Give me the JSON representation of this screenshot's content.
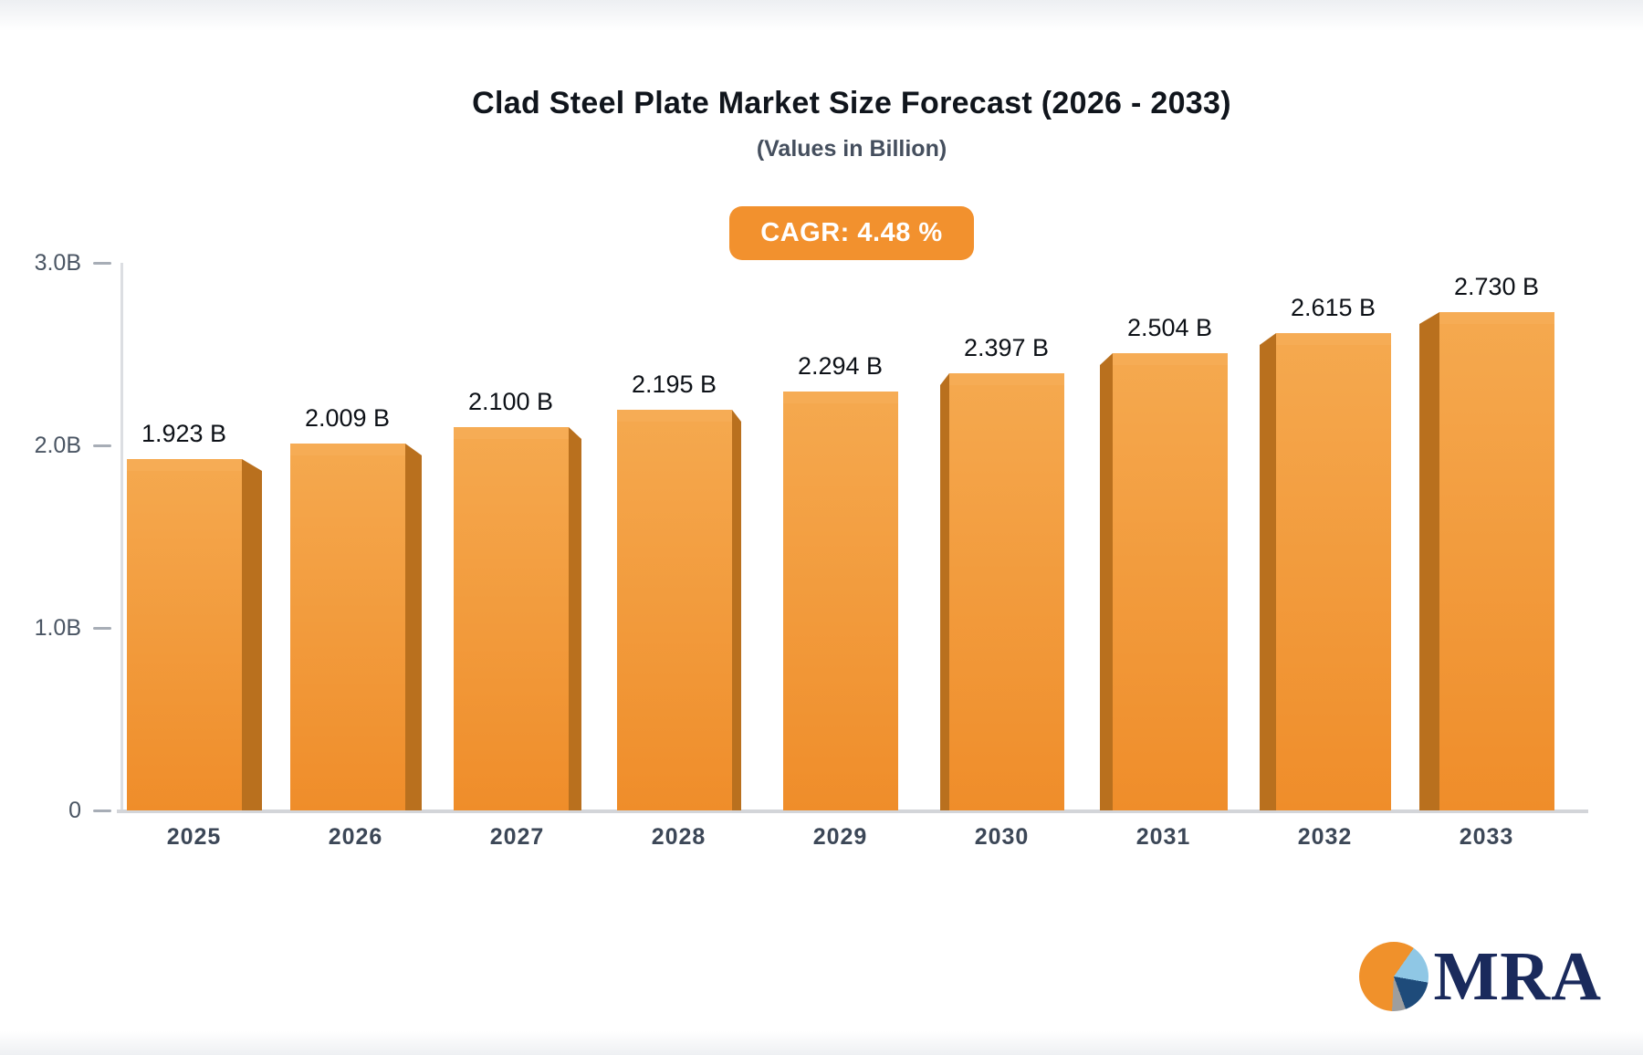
{
  "header": {
    "title": "Clad Steel Plate Market Size Forecast (2026 - 2033)",
    "subtitle": "(Values in Billion)",
    "badge": "CAGR: 4.48 %",
    "badge_color": "#F2912E"
  },
  "logo": {
    "text": "MRA",
    "text_color": "#1A2A5C",
    "pie_orange": "#F0912B",
    "pie_lightblue": "#8FC7E5",
    "pie_navy": "#1E4B7A",
    "pie_grey": "#9E9E9E"
  },
  "chart_data": {
    "type": "bar",
    "title": "Clad Steel Plate Market Size Forecast (2026 - 2033)",
    "subtitle": "(Values in Billion)",
    "unit": "Billion",
    "categories": [
      "2025",
      "2026",
      "2027",
      "2028",
      "2029",
      "2030",
      "2031",
      "2032",
      "2033"
    ],
    "values": [
      1.923,
      2.009,
      2.1,
      2.195,
      2.294,
      2.397,
      2.504,
      2.615,
      2.73
    ],
    "value_labels": [
      "1.923 B",
      "2.009 B",
      "2.100 B",
      "2.195 B",
      "2.294 B",
      "2.397 B",
      "2.504 B",
      "2.615 B",
      "2.730 B"
    ],
    "ylim": [
      0,
      3.0
    ],
    "y_ticks": [
      {
        "label": "3.0B",
        "value": 3.0
      },
      {
        "label": "2.0B",
        "value": 2.0
      },
      {
        "label": "1.0B",
        "value": 1.0
      },
      {
        "label": "0",
        "value": 0
      }
    ],
    "grid": false,
    "legend": false,
    "annotations": [
      {
        "type": "badge",
        "text": "CAGR: 4.48 %"
      }
    ],
    "bar_gradient": [
      "#F5A94F",
      "#EF8D2A"
    ],
    "bar_side_color": "#B9701E",
    "bar_cap_color": "#F6AC55",
    "axis_color": "#D3D5D9",
    "value_label_color": "#0d1117",
    "x_label_color": "#3C4757",
    "y_label_color": "#4A5563"
  }
}
